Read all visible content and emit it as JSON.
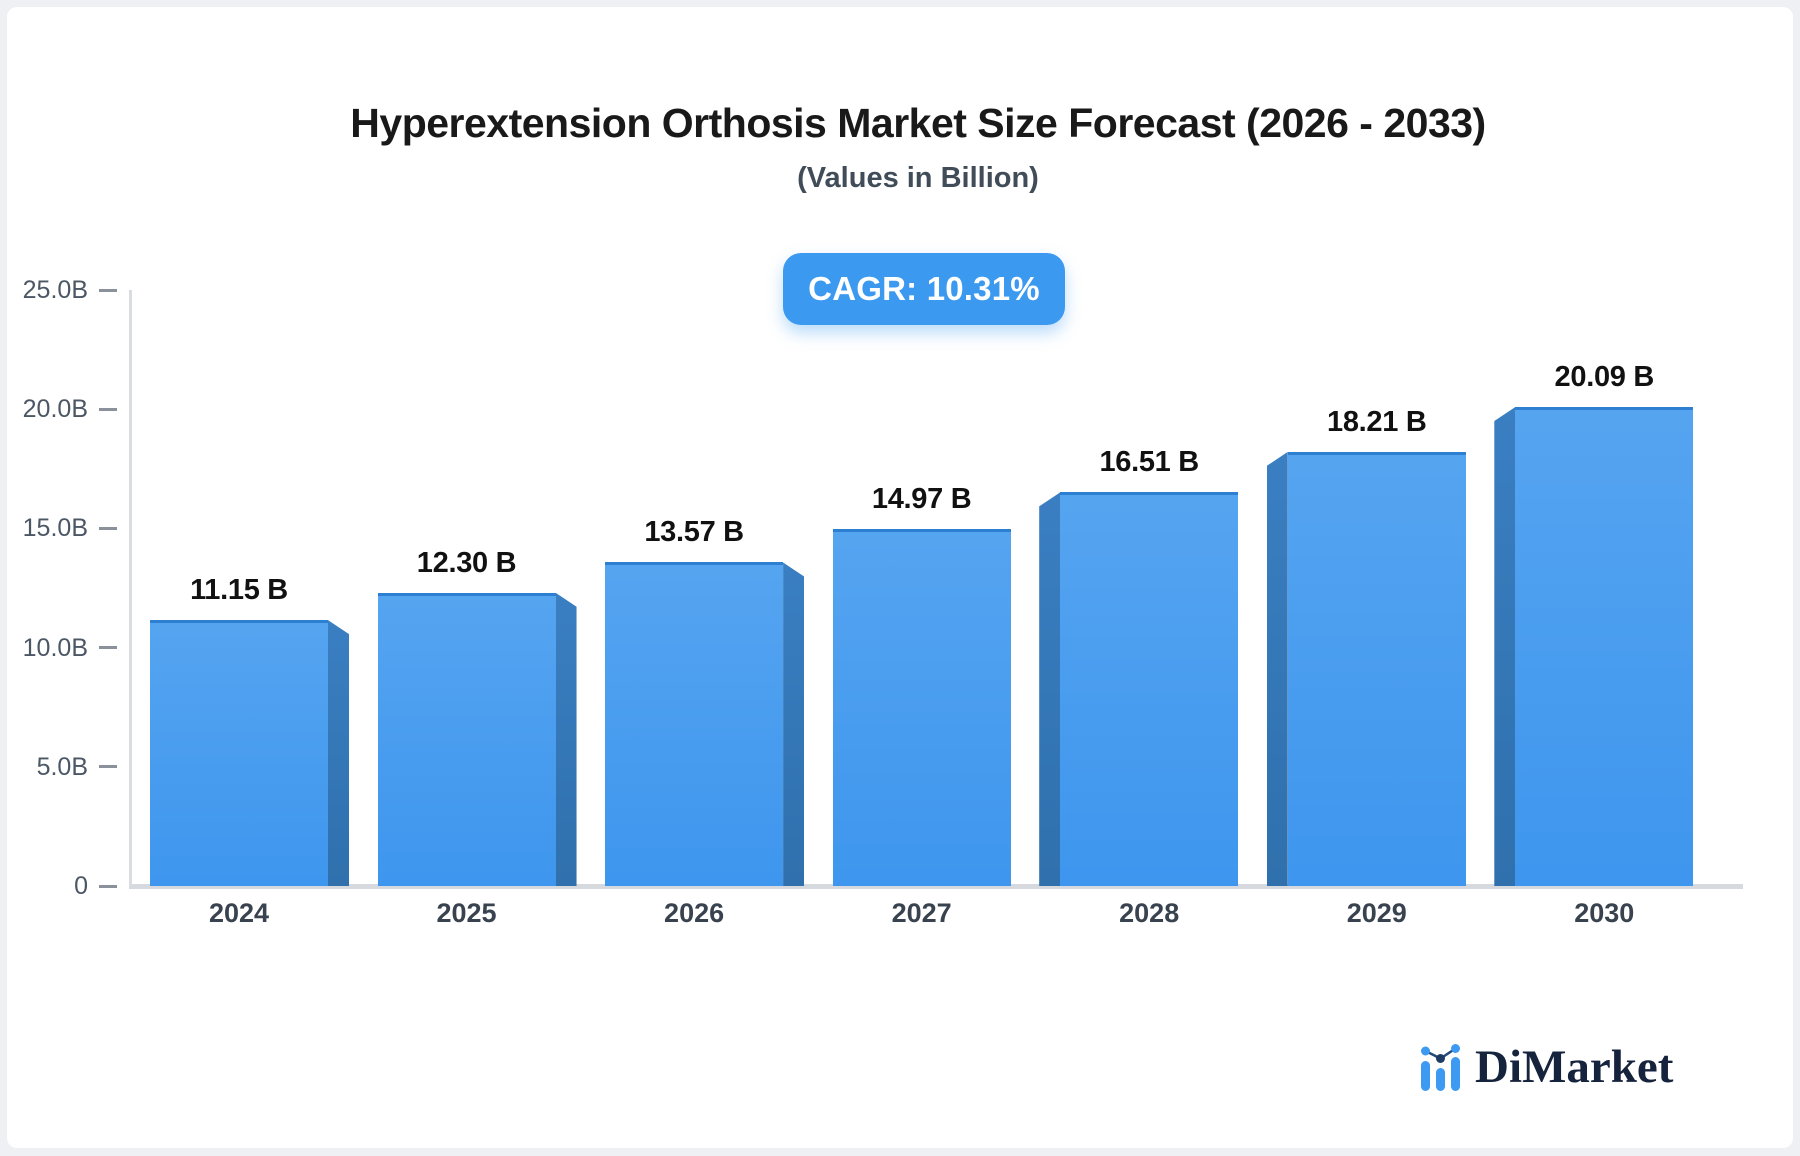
{
  "header": {
    "title": "Hyperextension Orthosis Market Size Forecast (2026 - 2033)",
    "subtitle": "(Values in Billion)",
    "cagr_badge": "CAGR: 10.31%"
  },
  "chart_data": {
    "type": "bar",
    "title": "Hyperextension Orthosis Market Size Forecast (2026 - 2033)",
    "subtitle": "(Values in Billion)",
    "annotation": "CAGR: 10.31%",
    "categories": [
      "2024",
      "2025",
      "2026",
      "2027",
      "2028",
      "2029",
      "2030"
    ],
    "values": [
      11.15,
      12.3,
      13.57,
      14.97,
      16.51,
      18.21,
      20.09
    ],
    "value_labels": [
      "11.15 B",
      "12.30 B",
      "13.57 B",
      "14.97 B",
      "16.51 B",
      "18.21 B",
      "20.09 B"
    ],
    "xlabel": "",
    "ylabel": "",
    "ylim": [
      0,
      25
    ],
    "ytick_values": [
      0,
      5,
      10,
      15,
      20,
      25
    ],
    "ytick_labels": [
      "0",
      "5.0B",
      "10.0B",
      "15.0B",
      "20.0B",
      "25.0B"
    ],
    "grid": false,
    "legend": false,
    "style": "3d-extruded-bars, perspective toward center bar"
  },
  "branding": {
    "name": "DiMarket",
    "icon": "bar-chart-logo-icon"
  },
  "colors": {
    "accent": "#3b9af0",
    "bar_face_top": "#55a4f0",
    "bar_face_bottom": "#3e96ee",
    "bar_top_edge": "#2c7fd1",
    "bar_side_top": "#3a7fc2",
    "bar_side_bottom": "#2f70ad",
    "axis_line": "#d9dce0",
    "baseline": "#d6dade",
    "tick_dash": "#8b919b",
    "ytick_text": "#4c5765",
    "xtick_text": "#39434f",
    "value_text": "#111111",
    "title_text": "#191919",
    "subtitle_text": "#414c59",
    "badge_bg": "#3b9af0",
    "badge_text": "#ffffff",
    "logo_text": "#16233c",
    "logo_blue": "#3d9af3",
    "logo_navy": "#1d3b63",
    "page_bg": "#eef0f4",
    "card_bg": "#ffffff"
  }
}
